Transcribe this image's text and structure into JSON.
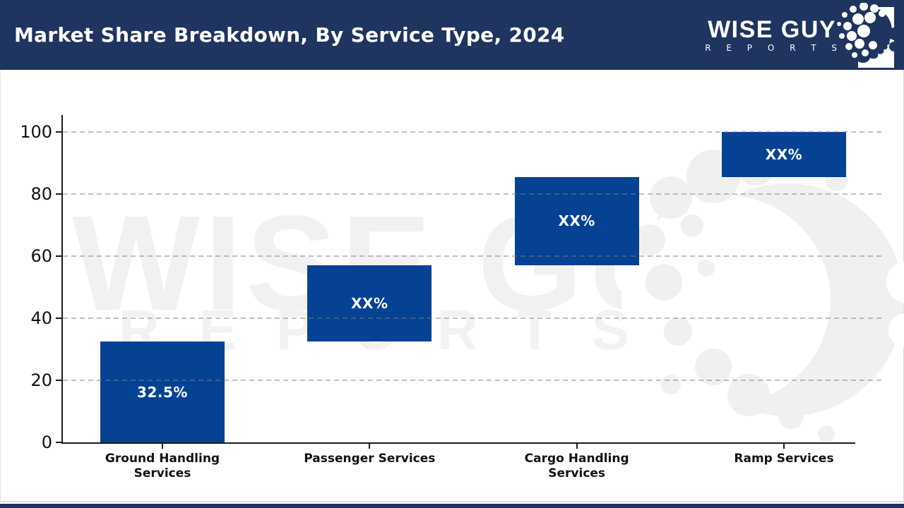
{
  "header": {
    "title": "Market Share Breakdown, By Service Type, 2024"
  },
  "logo": {
    "line1": "WISE GUY",
    "line2": "R E P O R T S"
  },
  "watermark": {
    "line1": "WISE GUY",
    "line2": "REPORTS"
  },
  "chart_data": {
    "type": "bar",
    "variant": "waterfall-stacked-percentage",
    "title": "Market Share Breakdown, By Service Type, 2024",
    "categories": [
      "Ground Handling Services",
      "Passenger Services",
      "Cargo Handling Services",
      "Ramp Services"
    ],
    "category_label_lines": [
      [
        "Ground Handling",
        "Services"
      ],
      [
        "Passenger Services"
      ],
      [
        "Cargo Handling",
        "Services"
      ],
      [
        "Ramp Services"
      ]
    ],
    "segments": [
      {
        "category": "Ground Handling Services",
        "start": 0,
        "end": 32.5,
        "value": 32.5,
        "label": "32.5%"
      },
      {
        "category": "Passenger Services",
        "start": 32.5,
        "end": 57,
        "value": 24.5,
        "label": "XX%"
      },
      {
        "category": "Cargo Handling Services",
        "start": 57,
        "end": 85.5,
        "value": 28.5,
        "label": "XX%"
      },
      {
        "category": "Ramp Services",
        "start": 85.5,
        "end": 100,
        "value": 14.5,
        "label": "XX%"
      }
    ],
    "yticks": [
      0,
      20,
      40,
      60,
      80,
      100
    ],
    "ylim": [
      0,
      105
    ],
    "xlabel": "",
    "ylabel": "",
    "grid": "horizontal-dashed-over-bars",
    "legend": "none",
    "colors": {
      "bar": "#054294",
      "bar_label": "#ffffff",
      "header_band": "#203460",
      "gridline": "#9a9a9a",
      "axis": "#1c1c1c",
      "watermark": "#f1f1f1"
    }
  }
}
